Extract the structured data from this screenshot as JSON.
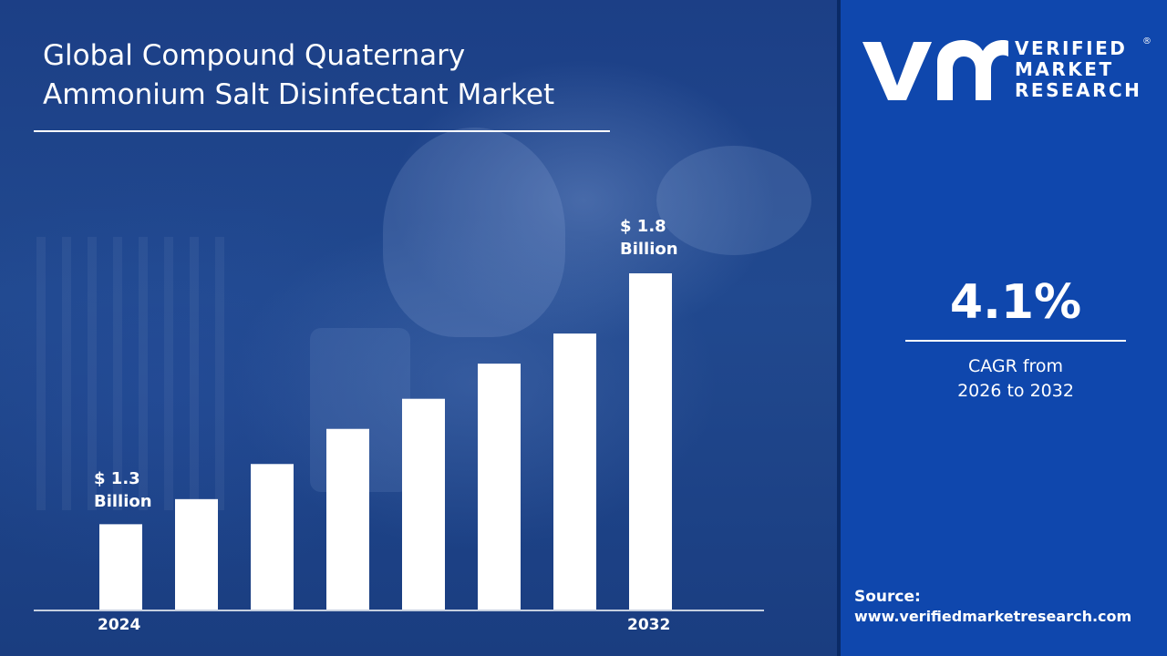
{
  "title": "Global Compound Quaternary\nAmmonium Salt Disinfectant Market",
  "logo": {
    "text": "VERIFIED\nMARKET\nRESEARCH",
    "registered_mark": "®"
  },
  "cagr": {
    "value": "4.1%",
    "caption": "CAGR from\n2026 to 2032"
  },
  "source": {
    "label": "Source:",
    "url": "www.verifiedmarketresearch.com"
  },
  "colors": {
    "bar": "#ffffff",
    "right_panel": "#0f47ad",
    "accent": "#ffffff"
  },
  "chart_data": {
    "type": "bar",
    "title": "Global Compound Quaternary Ammonium Salt Disinfectant Market",
    "categories": [
      "2024",
      "",
      "",
      "",
      "",
      "",
      "",
      "2032"
    ],
    "values": [
      1.3,
      1.35,
      1.42,
      1.49,
      1.55,
      1.62,
      1.68,
      1.8
    ],
    "unit": "Billion",
    "data_labels": [
      {
        "index": 0,
        "text": "$ 1.3\nBillion"
      },
      {
        "index": 7,
        "text": "$ 1.8\nBillion"
      }
    ],
    "x_tick_labels": [
      "2024",
      "2032"
    ],
    "ylim": [
      1.13,
      1.8
    ],
    "grid": false,
    "legend": "none"
  }
}
